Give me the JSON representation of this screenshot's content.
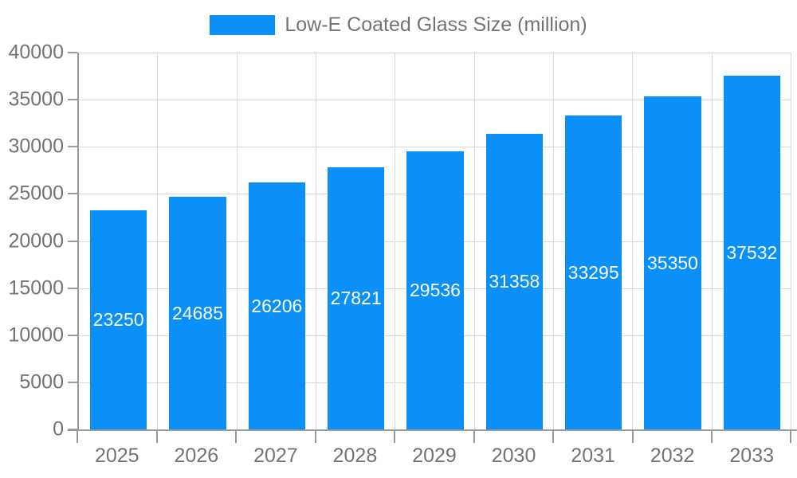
{
  "chart_data": {
    "type": "bar",
    "title": "Low-E Coated Glass Size (million)",
    "legend": {
      "label": "Low-E Coated Glass Size (million)",
      "position": "top-center"
    },
    "categories": [
      "2025",
      "2026",
      "2027",
      "2028",
      "2029",
      "2030",
      "2031",
      "2032",
      "2033"
    ],
    "series": [
      {
        "name": "Low-E Coated Glass Size (million)",
        "values": [
          23250,
          24685,
          26206,
          27821,
          29536,
          31358,
          33295,
          35350,
          37532
        ]
      }
    ],
    "xlabel": "",
    "ylabel": "",
    "ylim": [
      0,
      40000
    ],
    "yticks": [
      0,
      5000,
      10000,
      15000,
      20000,
      25000,
      30000,
      35000,
      40000
    ],
    "grid": true,
    "value_labels": {
      "show": true,
      "position": "center-of-bar",
      "color": "#ffffff"
    },
    "colors": {
      "bar": "#0a90f8",
      "axis_line": "#9a9a9a",
      "grid_line": "#d9d9d9",
      "axis_text": "#737373",
      "value_label": "#ffffff",
      "background": "#ffffff"
    }
  }
}
